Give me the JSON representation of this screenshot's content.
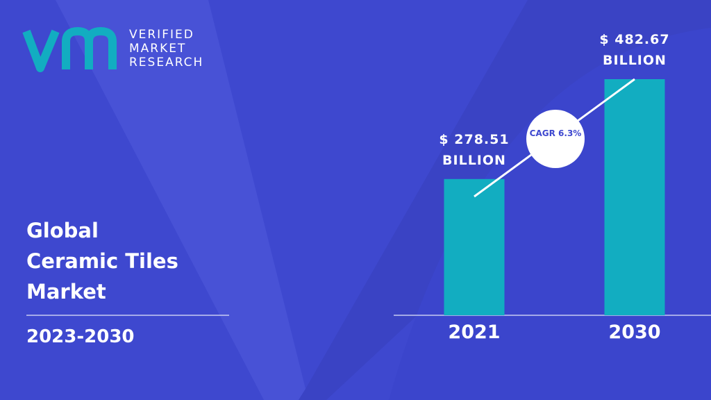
{
  "chart_data": {
    "type": "bar",
    "brand": "VERIFIED MARKET RESEARCH",
    "title": "Global\nCeramic Tiles\nMarket",
    "subtitle": "2023-2030",
    "annotation": "CAGR 6.3%",
    "categories": [
      "2021",
      "2030"
    ],
    "values": [
      278.51,
      482.67
    ],
    "value_labels": [
      "$ 278.51 BILLION",
      "$ 482.67 BILLION"
    ],
    "color": "#12adc1"
  }
}
